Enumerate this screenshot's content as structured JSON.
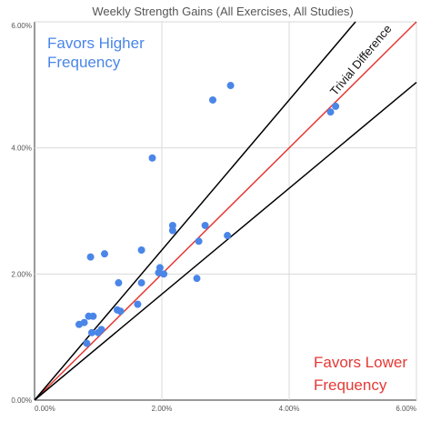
{
  "chart_data": {
    "type": "scatter",
    "title": "Weekly Strength Gains (All Exercises, All Studies)",
    "xlabel": "",
    "ylabel": "",
    "xlim": [
      0,
      6
    ],
    "ylim": [
      0,
      6
    ],
    "x_ticks": [
      "0.00%",
      "2.00%",
      "4.00%",
      "6.00%"
    ],
    "y_ticks": [
      "0.00%",
      "2.00%",
      "4.00%",
      "6.00%"
    ],
    "grid": true,
    "points": [
      {
        "x": 0.7,
        "y": 1.2
      },
      {
        "x": 0.78,
        "y": 1.23
      },
      {
        "x": 0.82,
        "y": 0.9
      },
      {
        "x": 0.85,
        "y": 1.33
      },
      {
        "x": 0.9,
        "y": 1.07
      },
      {
        "x": 0.92,
        "y": 1.33
      },
      {
        "x": 1.0,
        "y": 1.07
      },
      {
        "x": 1.05,
        "y": 1.12
      },
      {
        "x": 0.88,
        "y": 2.27
      },
      {
        "x": 1.1,
        "y": 2.32
      },
      {
        "x": 1.3,
        "y": 1.43
      },
      {
        "x": 1.35,
        "y": 1.41
      },
      {
        "x": 1.32,
        "y": 1.86
      },
      {
        "x": 1.62,
        "y": 1.52
      },
      {
        "x": 1.68,
        "y": 1.86
      },
      {
        "x": 1.68,
        "y": 2.38
      },
      {
        "x": 1.85,
        "y": 3.84
      },
      {
        "x": 1.95,
        "y": 2.02
      },
      {
        "x": 1.97,
        "y": 2.1
      },
      {
        "x": 2.03,
        "y": 2.0
      },
      {
        "x": 2.17,
        "y": 2.69
      },
      {
        "x": 2.17,
        "y": 2.77
      },
      {
        "x": 2.55,
        "y": 1.93
      },
      {
        "x": 2.58,
        "y": 2.52
      },
      {
        "x": 2.68,
        "y": 2.77
      },
      {
        "x": 2.8,
        "y": 4.76
      },
      {
        "x": 3.03,
        "y": 2.61
      },
      {
        "x": 3.08,
        "y": 4.99
      },
      {
        "x": 4.65,
        "y": 4.57
      },
      {
        "x": 4.73,
        "y": 4.66
      }
    ],
    "reference_lines": [
      {
        "slope": 1.0,
        "color": "#e53935"
      },
      {
        "slope": 1.19,
        "color": "#000000"
      },
      {
        "slope": 0.84,
        "color": "#000000"
      }
    ],
    "point_color": "#4a86e8",
    "annotations": {
      "top_left_line1": "Favors Higher",
      "top_left_line2": "Frequency",
      "bottom_right_line1": "Favors Lower",
      "bottom_right_line2": "Frequency",
      "band_label": "Trivial Difference"
    }
  }
}
